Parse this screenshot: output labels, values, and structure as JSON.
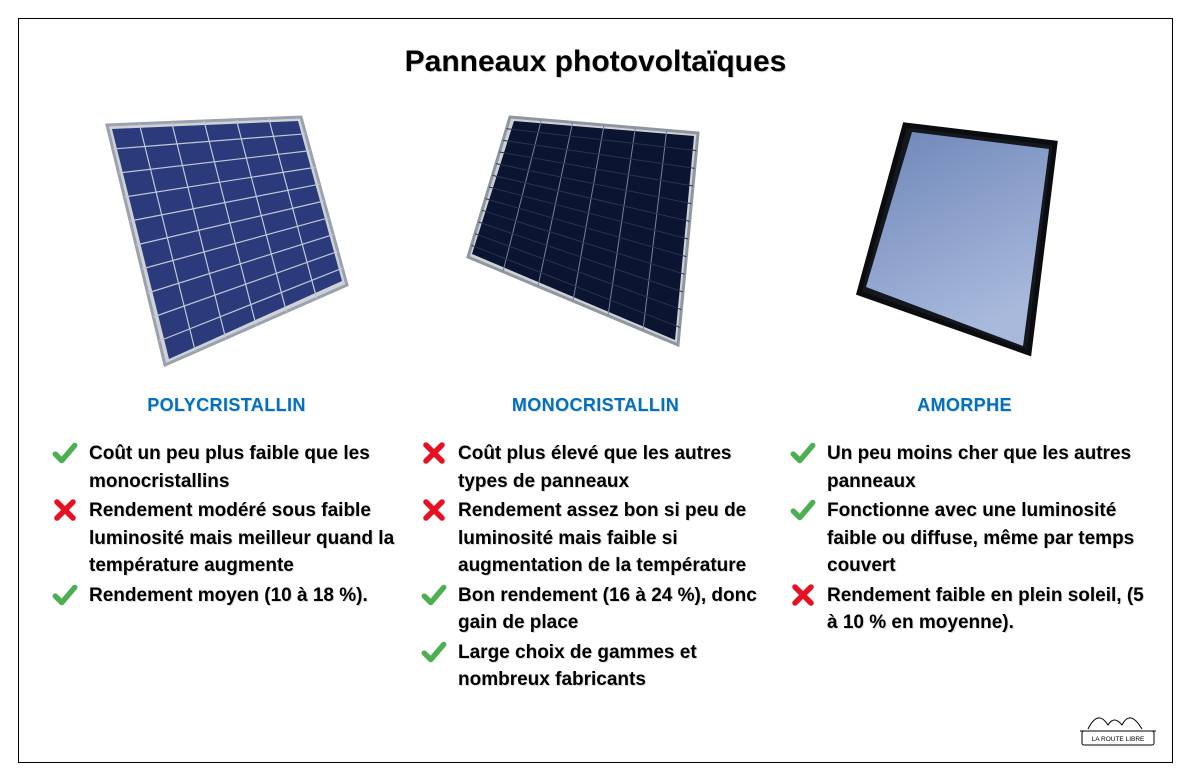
{
  "title": "Panneaux photovoltaïques",
  "colors": {
    "heading_blue": "#0070c0",
    "text": "#000000",
    "check_green": "#4caf50",
    "cross_red": "#e81123",
    "panel_poly": "#2a3a7a",
    "panel_mono": "#0b1430",
    "panel_amorphe_top": "#6e86b8",
    "panel_amorphe_bottom": "#a8b9dc",
    "frame": "#cfd3d8",
    "border": "#000000",
    "background": "#ffffff"
  },
  "logo_text": "LA ROUTE LIBRE",
  "panels": [
    {
      "key": "poly",
      "label": "POLYCRISTALLIN",
      "bullets": [
        {
          "kind": "check",
          "text": "Coût un peu plus faible que les monocristallins"
        },
        {
          "kind": "cross",
          "text": "Rendement modéré sous faible luminosité mais meilleur quand la température augmente"
        },
        {
          "kind": "check",
          "text": "Rendement moyen (10 à 18 %)."
        }
      ]
    },
    {
      "key": "mono",
      "label": "MONOCRISTALLIN",
      "bullets": [
        {
          "kind": "cross",
          "text": "Coût plus élevé que les autres types de panneaux"
        },
        {
          "kind": "cross",
          "text": "Rendement assez bon si peu de luminosité mais faible si augmentation de la température"
        },
        {
          "kind": "check",
          "text": "Bon rendement (16 à 24 %), donc gain de place"
        },
        {
          "kind": "check",
          "text": "Large choix de gammes et nombreux fabricants"
        }
      ]
    },
    {
      "key": "amorphe",
      "label": "AMORPHE",
      "bullets": [
        {
          "kind": "check",
          "text": "Un peu moins cher que les autres panneaux"
        },
        {
          "kind": "check",
          "text": "Fonctionne avec une luminosité faible ou diffuse, même par temps couvert"
        },
        {
          "kind": "cross",
          "text": "Rendement faible en plein soleil, (5 à 10 % en moyenne)."
        }
      ]
    }
  ]
}
